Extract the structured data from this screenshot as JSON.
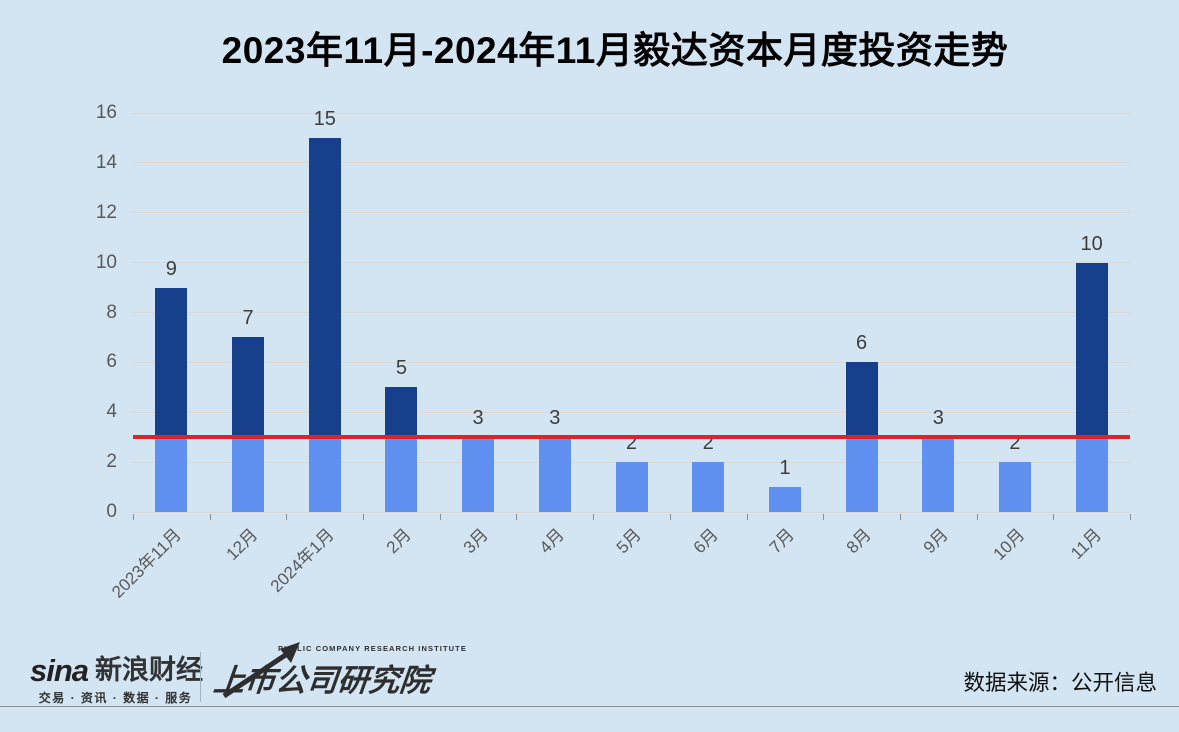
{
  "title": "2023年11月-2024年11月毅达资本月度投资走势",
  "chart_data": {
    "type": "bar",
    "title": "2023年11月-2024年11月毅达资本月度投资走势",
    "categories": [
      "2023年11月",
      "12月",
      "2024年1月",
      "2月",
      "3月",
      "4月",
      "5月",
      "6月",
      "7月",
      "8月",
      "9月",
      "10月",
      "11月"
    ],
    "values": [
      9,
      7,
      15,
      5,
      3,
      3,
      2,
      2,
      1,
      6,
      3,
      2,
      10
    ],
    "xlabel": "",
    "ylabel": "",
    "ylim": [
      0,
      16
    ],
    "yticks": [
      0,
      2,
      4,
      6,
      8,
      10,
      12,
      14,
      16
    ],
    "grid": true,
    "legend_position": "none",
    "threshold": 3,
    "reference_line": {
      "value": 3,
      "color": "#dd2326"
    },
    "bar_color_above_threshold": "#163f8c",
    "bar_color_below_threshold": "#6090f0",
    "value_label_color": "#3d3d3d",
    "axis_label_color": "#595959"
  },
  "colors": {
    "background": "#d3e5f3",
    "bar_above": "#163f8c",
    "bar_below": "#6090f0",
    "reference_line": "#dd2326",
    "sina_red": "#e6162d"
  },
  "footer": {
    "sina": {
      "wordmark": "sina",
      "brand": "新浪财经",
      "tagline": "交易 · 资讯 · 数据 · 服务"
    },
    "institute": {
      "en": "PUBLIC COMPANY RESEARCH INSTITUTE",
      "cn": "上市公司研究院"
    },
    "source": "数据来源：公开信息"
  }
}
